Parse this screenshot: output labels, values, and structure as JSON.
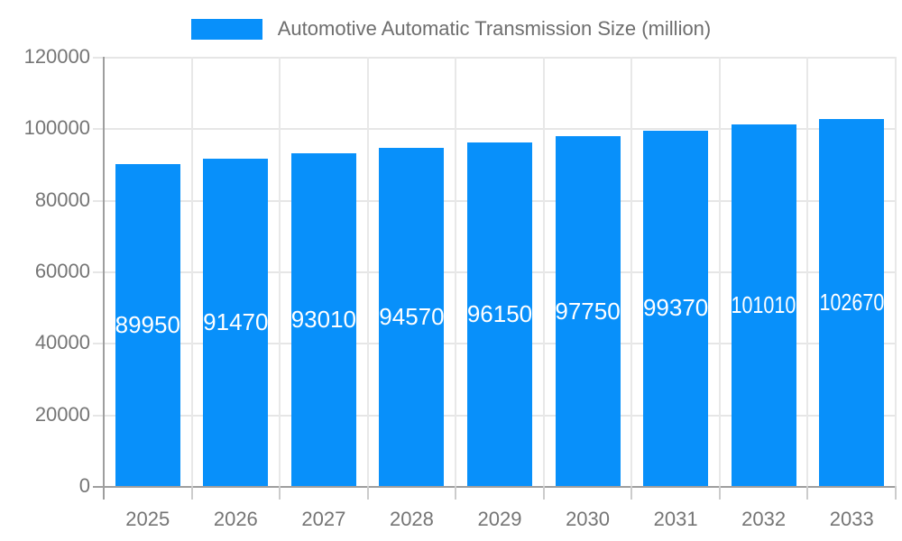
{
  "chart_data": {
    "type": "bar",
    "title": "Automotive Automatic Transmission Size (million)",
    "legend_position": "top",
    "categories": [
      "2025",
      "2026",
      "2027",
      "2028",
      "2029",
      "2030",
      "2031",
      "2032",
      "2033"
    ],
    "values": [
      89950,
      91470,
      93010,
      94570,
      96150,
      97750,
      99370,
      101010,
      102670
    ],
    "xlabel": "",
    "ylabel": "",
    "ylim": [
      0,
      120000
    ],
    "ytick_step": 20000,
    "yticks": [
      0,
      20000,
      40000,
      60000,
      80000,
      100000,
      120000
    ],
    "grid": "on",
    "colors": {
      "bar": "#0890FA",
      "bar_label": "#ffffff",
      "axis_text": "#757575",
      "title_text": "#6e6e6e",
      "gridline": "#e6e6e6",
      "axis_line": "#9e9e9e"
    }
  }
}
